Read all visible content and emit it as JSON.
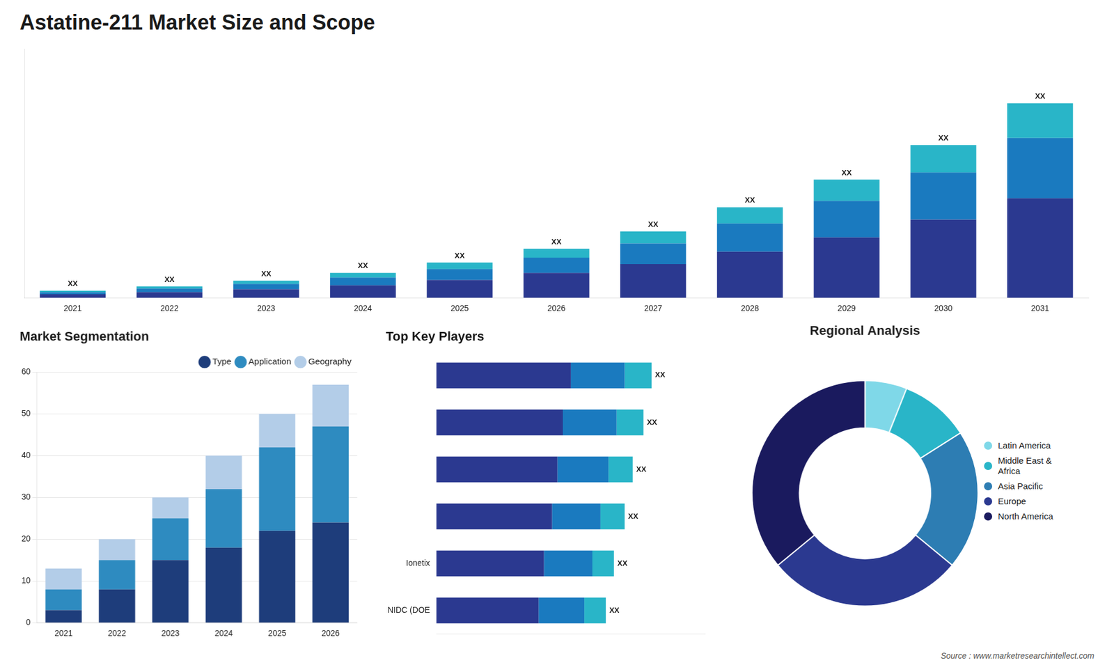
{
  "title": "Astatine-211 Market Size and Scope",
  "annotations": [
    "Source : www.marketresearchintellect.com"
  ],
  "chart_data": [
    {
      "type": "bar",
      "stacked": true,
      "categories": [
        "2021",
        "2022",
        "2023",
        "2024",
        "2025",
        "2026",
        "2027",
        "2028",
        "2029",
        "2030",
        "2031"
      ],
      "series": [
        {
          "color": "#2b3990",
          "values": [
            1.0,
            1.6,
            2.4,
            3.5,
            5.0,
            7.0,
            9.5,
            13.0,
            17.0,
            22.0,
            28.0
          ]
        },
        {
          "color": "#1a7abf",
          "values": [
            0.6,
            1.0,
            1.5,
            2.2,
            3.1,
            4.3,
            5.8,
            7.9,
            10.3,
            13.3,
            17.0
          ]
        },
        {
          "color": "#29b5c8",
          "values": [
            0.4,
            0.6,
            0.9,
            1.3,
            1.8,
            2.5,
            3.4,
            4.6,
            6.0,
            7.7,
            9.8
          ]
        }
      ],
      "ylim": [
        0,
        70.144
      ],
      "tick_labels": "x",
      "grid": false,
      "annotations": [
        "XX",
        "XX",
        "XX",
        "XX",
        "XX",
        "XX",
        "XX",
        "XX",
        "XX",
        "XX",
        "XX"
      ]
    },
    {
      "type": "bar",
      "title": "Market Segmentation",
      "stacked": true,
      "categories": [
        "2021",
        "2022",
        "2023",
        "2024",
        "2025",
        "2026"
      ],
      "series": [
        {
          "name": "Type",
          "color": "#1e3d7b",
          "values": [
            3,
            8,
            15,
            18,
            22,
            24
          ]
        },
        {
          "name": "Application",
          "color": "#2e8bc0",
          "values": [
            5,
            7,
            10,
            14,
            20,
            23
          ]
        },
        {
          "name": "Geography",
          "color": "#b3cde8",
          "values": [
            5,
            5,
            5,
            8,
            8,
            10
          ]
        }
      ],
      "ylim": [
        0,
        60
      ],
      "yticks": [
        0,
        10,
        20,
        30,
        40,
        50,
        60
      ],
      "grid": true,
      "legend": "upper right"
    },
    {
      "type": "bar",
      "title": "Top Key Players",
      "orientation": "horizontal",
      "stacked": true,
      "categories": [
        null,
        null,
        null,
        null,
        "Ionetix",
        "NIDC (DOE"
      ],
      "series": [
        {
          "color": "#2b3990",
          "values": [
            0.5,
            0.47,
            0.45,
            0.43,
            0.4,
            0.38
          ]
        },
        {
          "color": "#1a7abf",
          "values": [
            0.2,
            0.2,
            0.19,
            0.18,
            0.18,
            0.17
          ]
        },
        {
          "color": "#29b5c8",
          "values": [
            0.1,
            0.1,
            0.09,
            0.09,
            0.08,
            0.08
          ]
        }
      ],
      "xlim": [
        0,
        1.0
      ],
      "tick_labels": "y",
      "grid": false,
      "annotations": [
        "XX",
        "XX",
        "XX",
        "XX",
        "XX",
        "XX"
      ]
    },
    {
      "type": "doughnut",
      "title": "Regional Analysis",
      "categories": [
        "Latin America",
        "Middle East &\nAfrica",
        "Asia Pacific",
        "Europe",
        "North America"
      ],
      "values": [
        0.06,
        0.1,
        0.2,
        0.28,
        0.36
      ],
      "colors": [
        "#7fd8e8",
        "#29b5c8",
        "#2d7db3",
        "#2b3990",
        "#1a1a5e"
      ],
      "legend": "right"
    }
  ]
}
